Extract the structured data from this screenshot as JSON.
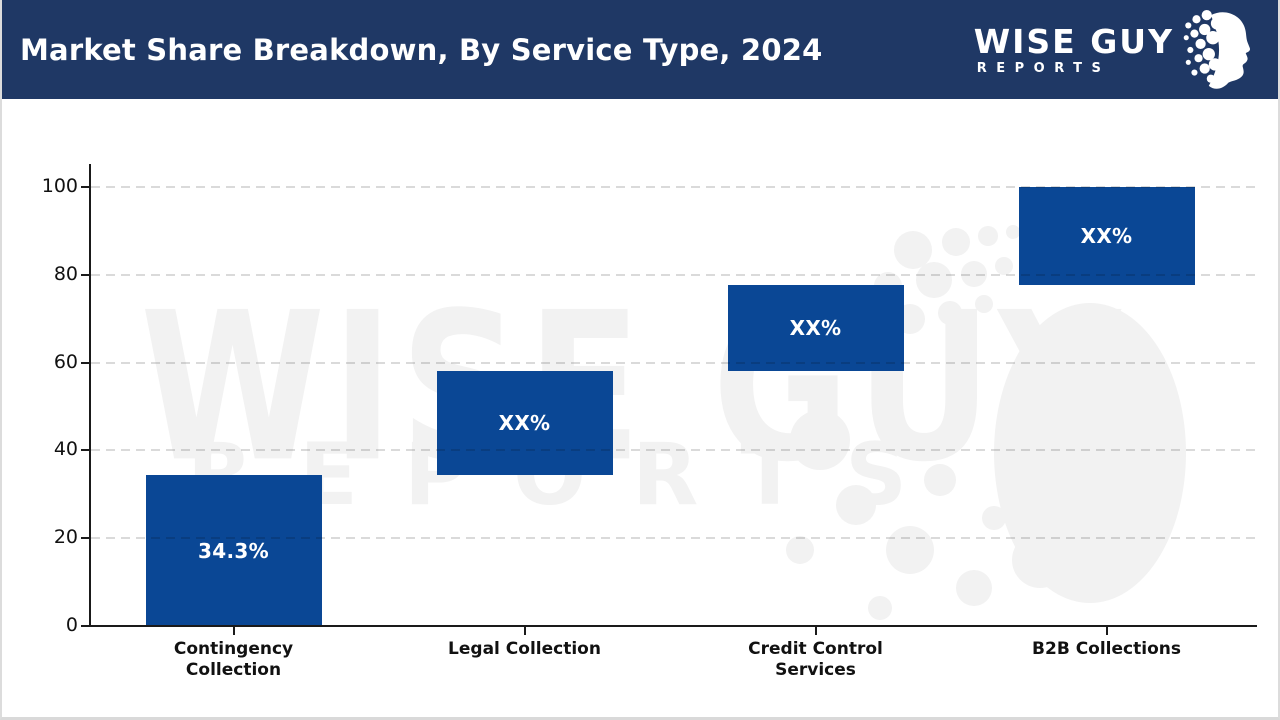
{
  "header": {
    "title": "Market Share Breakdown, By Service Type, 2024",
    "bg_color": "#1F3865",
    "text_color": "#FFFFFF"
  },
  "logo": {
    "line1": "WISE GUY",
    "line2": "REPORTS"
  },
  "watermark": {
    "line1": "WISE GUY",
    "line2": "REPORTS"
  },
  "chart_data": {
    "type": "bar",
    "subtype": "waterfall",
    "title": "Market Share Breakdown, By Service Type, 2024",
    "xlabel": "",
    "ylabel": "",
    "categories": [
      "Contingency Collection",
      "Legal Collection",
      "Credit Control Services",
      "B2B Collections"
    ],
    "category_display_lines": [
      [
        "Contingency",
        "Collection"
      ],
      [
        "Legal Collection"
      ],
      [
        "Credit Control",
        "Services"
      ],
      [
        "B2B Collections"
      ]
    ],
    "segments": [
      {
        "category": "Contingency Collection",
        "base": 0,
        "top": 34.3,
        "label": "34.3%"
      },
      {
        "category": "Legal Collection",
        "base": 34.3,
        "top": 58.0,
        "label": "XX%"
      },
      {
        "category": "Credit Control Services",
        "base": 58.0,
        "top": 77.6,
        "label": "XX%"
      },
      {
        "category": "B2B Collections",
        "base": 77.6,
        "top": 100.0,
        "label": "XX%"
      }
    ],
    "yticks": [
      0,
      20,
      40,
      60,
      80,
      100
    ],
    "ylim": [
      0,
      105
    ],
    "grid": "dashed horizontal, drawn over bars",
    "legend": "none",
    "bar_color": "#0A4795",
    "bar_label_color": "#FFFFFF",
    "axis_color": "#1a1a1a"
  }
}
